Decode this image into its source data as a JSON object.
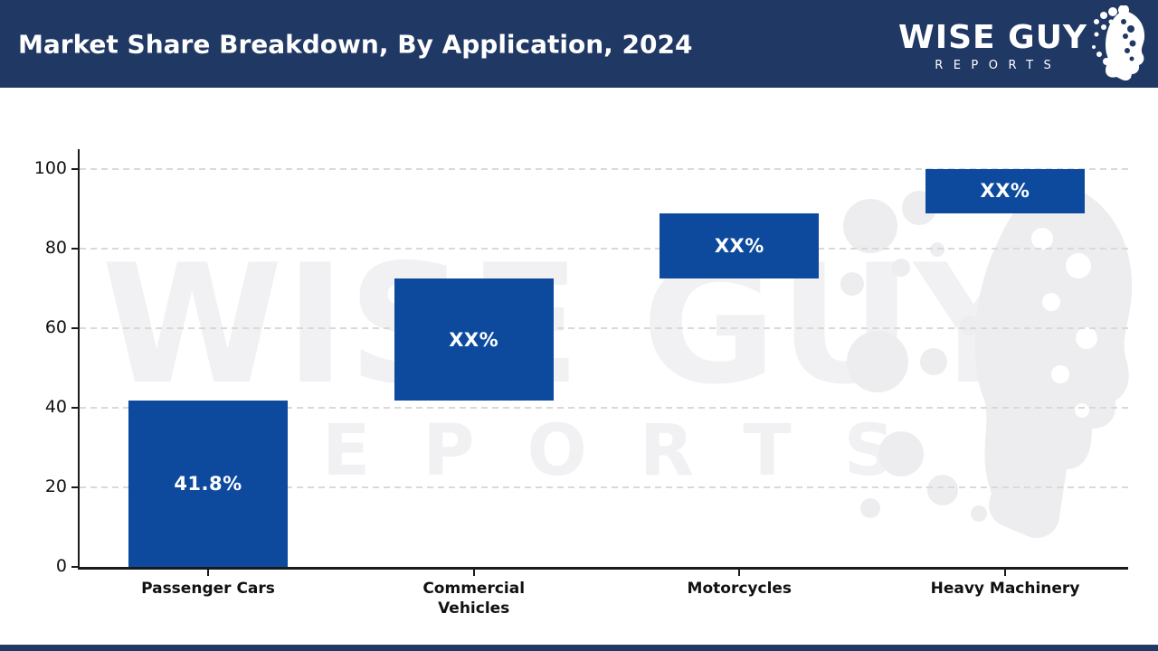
{
  "header": {
    "title": "Market Share Breakdown, By Application, 2024",
    "logo": {
      "brand_top": "WISE GUY",
      "brand_bottom": "REPORTS"
    }
  },
  "watermark": {
    "line1": "WISE GUY",
    "line2": "REPORTS"
  },
  "chart_data": {
    "type": "bar",
    "variant": "waterfall",
    "title": "Market Share Breakdown, By Application, 2024",
    "categories": [
      "Passenger Cars",
      "Commercial\nVehicles",
      "Motorcycles",
      "Heavy Machinery"
    ],
    "segments": [
      {
        "category": "Passenger Cars",
        "start": 0,
        "end": 41.8,
        "label": "41.8%"
      },
      {
        "category": "Commercial Vehicles",
        "start": 41.8,
        "end": 72.5,
        "label": "XX%"
      },
      {
        "category": "Motorcycles",
        "start": 72.5,
        "end": 88.9,
        "label": "XX%"
      },
      {
        "category": "Heavy Machinery",
        "start": 88.9,
        "end": 100,
        "label": "XX%"
      }
    ],
    "xlabel": "",
    "ylabel": "",
    "yticks": [
      0,
      20,
      40,
      60,
      80,
      100
    ],
    "ylim": [
      0,
      105
    ],
    "grid": "horizontal-dashed",
    "legend": "none",
    "colors": {
      "bar": "#0d4a9e",
      "grid": "#d9d9d9",
      "axis": "#1a1a1a",
      "bar_label": "#ffffff",
      "header_bg": "#203864",
      "watermark": "#f1f1f4"
    }
  }
}
